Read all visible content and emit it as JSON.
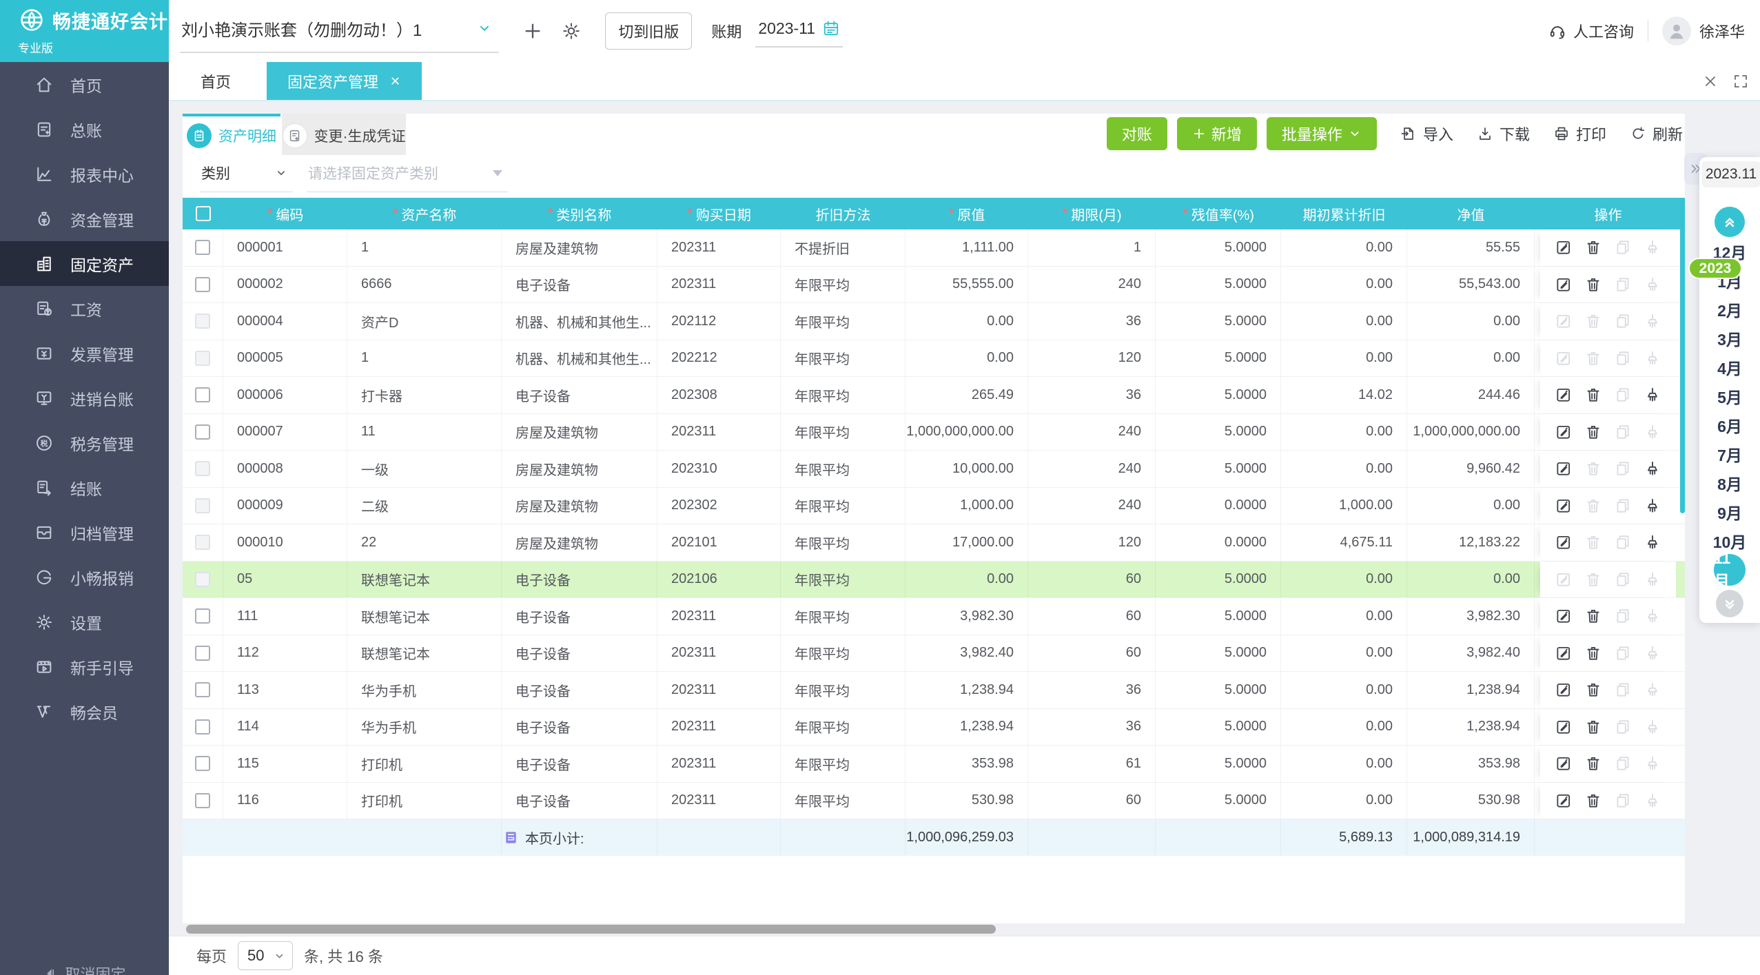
{
  "brand": {
    "name": "畅捷通好会计",
    "edition": "专业版"
  },
  "header": {
    "account": "刘小艳演示账套（勿删勿动！）1",
    "switch_old": "切到旧版",
    "period_label": "账期",
    "period_value": "2023-11",
    "consult": "人工咨询",
    "user": "徐泽华"
  },
  "sidebar": {
    "items": [
      {
        "icon": "home",
        "label": "首页",
        "active": false
      },
      {
        "icon": "ledger",
        "label": "总账",
        "active": false
      },
      {
        "icon": "report",
        "label": "报表中心",
        "active": false
      },
      {
        "icon": "fund",
        "label": "资金管理",
        "active": false
      },
      {
        "icon": "fixed-asset",
        "label": "固定资产",
        "active": true
      },
      {
        "icon": "salary",
        "label": "工资",
        "active": false
      },
      {
        "icon": "invoice",
        "label": "发票管理",
        "active": false
      },
      {
        "icon": "purchase-sale",
        "label": "进销台账",
        "active": false
      },
      {
        "icon": "tax",
        "label": "税务管理",
        "active": false
      },
      {
        "icon": "closing",
        "label": "结账",
        "active": false
      },
      {
        "icon": "archive",
        "label": "归档管理",
        "active": false
      },
      {
        "icon": "reimburse",
        "label": "小畅报销",
        "active": false
      },
      {
        "icon": "settings",
        "label": "设置",
        "active": false
      },
      {
        "icon": "guide",
        "label": "新手引导",
        "active": false
      },
      {
        "icon": "member",
        "label": "畅会员",
        "active": false
      }
    ],
    "footer": "取消固定"
  },
  "tabs": [
    {
      "label": "首页",
      "active": false
    },
    {
      "label": "固定资产管理",
      "active": true,
      "closable": true
    }
  ],
  "subtabs": [
    {
      "label": "资产明细",
      "icon": "asset-detail",
      "active": true
    },
    {
      "label": "变更·生成凭证",
      "icon": "change-voucher",
      "active": false
    }
  ],
  "toolbar": {
    "reconcile": "对账",
    "add": "新增",
    "batch": "批量操作",
    "links": [
      {
        "icon": "import",
        "label": "导入"
      },
      {
        "icon": "download",
        "label": "下载"
      },
      {
        "icon": "print",
        "label": "打印"
      },
      {
        "icon": "refresh",
        "label": "刷新"
      }
    ]
  },
  "filter": {
    "label": "类别",
    "placeholder": "请选择固定资产类别"
  },
  "table": {
    "columns": [
      {
        "label": "",
        "type": "checkbox",
        "required": false
      },
      {
        "label": "编码",
        "required": true
      },
      {
        "label": "资产名称",
        "required": true
      },
      {
        "label": "类别名称",
        "required": true
      },
      {
        "label": "购买日期",
        "required": true
      },
      {
        "label": "折旧方法",
        "required": false
      },
      {
        "label": "原值",
        "required": true
      },
      {
        "label": "期限(月)",
        "required": true
      },
      {
        "label": "残值率(%)",
        "required": true
      },
      {
        "label": "期初累计折旧",
        "required": false
      },
      {
        "label": "净值",
        "required": false
      },
      {
        "label": "操作",
        "required": false,
        "type": "ops"
      }
    ],
    "rows": [
      {
        "code": "000001",
        "name": "1",
        "category": "房屋及建筑物",
        "date": "202311",
        "method": "不提折旧",
        "original": "1,111.00",
        "months": "1",
        "residual": "5.0000",
        "init_depr": "0.00",
        "net": "55.55",
        "enabled": true,
        "highlight": false,
        "ops": [
          1,
          1,
          0,
          0
        ]
      },
      {
        "code": "000002",
        "name": "6666",
        "category": "电子设备",
        "date": "202311",
        "method": "年限平均",
        "original": "55,555.00",
        "months": "240",
        "residual": "5.0000",
        "init_depr": "0.00",
        "net": "55,543.00",
        "enabled": true,
        "highlight": false,
        "ops": [
          1,
          1,
          0,
          0
        ]
      },
      {
        "code": "000004",
        "name": "资产D",
        "category": "机器、机械和其他生...",
        "date": "202112",
        "method": "年限平均",
        "original": "0.00",
        "months": "36",
        "residual": "5.0000",
        "init_depr": "0.00",
        "net": "0.00",
        "enabled": false,
        "highlight": false,
        "ops": [
          0,
          0,
          0,
          0
        ]
      },
      {
        "code": "000005",
        "name": "1",
        "category": "机器、机械和其他生...",
        "date": "202212",
        "method": "年限平均",
        "original": "0.00",
        "months": "120",
        "residual": "5.0000",
        "init_depr": "0.00",
        "net": "0.00",
        "enabled": false,
        "highlight": false,
        "ops": [
          0,
          0,
          0,
          0
        ]
      },
      {
        "code": "000006",
        "name": "打卡器",
        "category": "电子设备",
        "date": "202308",
        "method": "年限平均",
        "original": "265.49",
        "months": "36",
        "residual": "5.0000",
        "init_depr": "14.02",
        "net": "244.46",
        "enabled": true,
        "highlight": false,
        "ops": [
          1,
          1,
          0,
          1
        ]
      },
      {
        "code": "000007",
        "name": "11",
        "category": "房屋及建筑物",
        "date": "202311",
        "method": "年限平均",
        "original": "1,000,000,000.00",
        "months": "240",
        "residual": "5.0000",
        "init_depr": "0.00",
        "net": "1,000,000,000.00",
        "enabled": true,
        "highlight": false,
        "ops": [
          1,
          1,
          0,
          0
        ]
      },
      {
        "code": "000008",
        "name": "一级",
        "category": "房屋及建筑物",
        "date": "202310",
        "method": "年限平均",
        "original": "10,000.00",
        "months": "240",
        "residual": "5.0000",
        "init_depr": "0.00",
        "net": "9,960.42",
        "enabled": false,
        "highlight": false,
        "ops": [
          1,
          0,
          0,
          1
        ]
      },
      {
        "code": "000009",
        "name": "二级",
        "category": "房屋及建筑物",
        "date": "202302",
        "method": "年限平均",
        "original": "1,000.00",
        "months": "240",
        "residual": "0.0000",
        "init_depr": "1,000.00",
        "net": "0.00",
        "enabled": false,
        "highlight": false,
        "ops": [
          1,
          0,
          0,
          1
        ]
      },
      {
        "code": "000010",
        "name": "22",
        "category": "房屋及建筑物",
        "date": "202101",
        "method": "年限平均",
        "original": "17,000.00",
        "months": "120",
        "residual": "0.0000",
        "init_depr": "4,675.11",
        "net": "12,183.22",
        "enabled": false,
        "highlight": false,
        "ops": [
          1,
          0,
          0,
          1
        ]
      },
      {
        "code": "05",
        "name": "联想笔记本",
        "category": "电子设备",
        "date": "202106",
        "method": "年限平均",
        "original": "0.00",
        "months": "60",
        "residual": "5.0000",
        "init_depr": "0.00",
        "net": "0.00",
        "enabled": false,
        "highlight": true,
        "ops": [
          0,
          0,
          0,
          0
        ]
      },
      {
        "code": "111",
        "name": "联想笔记本",
        "category": "电子设备",
        "date": "202311",
        "method": "年限平均",
        "original": "3,982.30",
        "months": "60",
        "residual": "5.0000",
        "init_depr": "0.00",
        "net": "3,982.30",
        "enabled": true,
        "highlight": false,
        "ops": [
          1,
          1,
          0,
          0
        ]
      },
      {
        "code": "112",
        "name": "联想笔记本",
        "category": "电子设备",
        "date": "202311",
        "method": "年限平均",
        "original": "3,982.40",
        "months": "60",
        "residual": "5.0000",
        "init_depr": "0.00",
        "net": "3,982.40",
        "enabled": true,
        "highlight": false,
        "ops": [
          1,
          1,
          0,
          0
        ]
      },
      {
        "code": "113",
        "name": "华为手机",
        "category": "电子设备",
        "date": "202311",
        "method": "年限平均",
        "original": "1,238.94",
        "months": "36",
        "residual": "5.0000",
        "init_depr": "0.00",
        "net": "1,238.94",
        "enabled": true,
        "highlight": false,
        "ops": [
          1,
          1,
          0,
          0
        ]
      },
      {
        "code": "114",
        "name": "华为手机",
        "category": "电子设备",
        "date": "202311",
        "method": "年限平均",
        "original": "1,238.94",
        "months": "36",
        "residual": "5.0000",
        "init_depr": "0.00",
        "net": "1,238.94",
        "enabled": true,
        "highlight": false,
        "ops": [
          1,
          1,
          0,
          0
        ]
      },
      {
        "code": "115",
        "name": "打印机",
        "category": "电子设备",
        "date": "202311",
        "method": "年限平均",
        "original": "353.98",
        "months": "61",
        "residual": "5.0000",
        "init_depr": "0.00",
        "net": "353.98",
        "enabled": true,
        "highlight": false,
        "ops": [
          1,
          1,
          0,
          0
        ]
      },
      {
        "code": "116",
        "name": "打印机",
        "category": "电子设备",
        "date": "202311",
        "method": "年限平均",
        "original": "530.98",
        "months": "60",
        "residual": "5.0000",
        "init_depr": "0.00",
        "net": "530.98",
        "enabled": true,
        "highlight": false,
        "ops": [
          1,
          1,
          0,
          0
        ]
      }
    ],
    "op_names": [
      "edit",
      "delete",
      "voucher",
      "clean"
    ],
    "summary": {
      "label": "本页小计:",
      "original_total": "1,000,096,259.03",
      "init_depr_total": "5,689.13",
      "net_total": "1,000,089,314.19"
    }
  },
  "pagination": {
    "per_page_label": "每页",
    "per_page": "50",
    "suffix": "条, 共 16 条"
  },
  "calendar": {
    "current": "2023.11",
    "year_badge": "2023",
    "months": [
      "12月",
      "1月",
      "2月",
      "3月",
      "4月",
      "5月",
      "6月",
      "7月",
      "8月",
      "9月",
      "10月",
      "11月"
    ],
    "selected_index": 11
  },
  "colors": {
    "teal": "#35c3d4",
    "green": "#7bc52c",
    "sidebar": "#454c61",
    "sidebar_active": "#272c3c",
    "highlight_row": "#d9f6c6",
    "summary_row": "#eaf6fb",
    "required_star": "#ff6d6d"
  }
}
